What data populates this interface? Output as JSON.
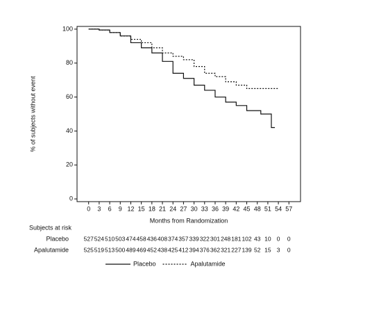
{
  "chart_data": {
    "type": "line",
    "step": true,
    "xlabel": "Months from Randomization",
    "ylabel": "% of subjects without event",
    "xlim": [
      -3.3,
      60.3
    ],
    "ylim": [
      -1.6,
      101.6
    ],
    "xticks": [
      0,
      3,
      6,
      9,
      12,
      15,
      18,
      21,
      24,
      27,
      30,
      33,
      36,
      39,
      42,
      45,
      48,
      51,
      54,
      57
    ],
    "yticks": [
      0,
      20,
      40,
      60,
      80,
      100
    ],
    "series": [
      {
        "name": "Placebo",
        "color": "#111111",
        "dash": "none",
        "x": [
          0,
          3,
          6,
          9,
          12,
          15,
          18,
          21,
          24,
          27,
          30,
          33,
          36,
          39,
          42,
          45,
          48,
          49,
          52,
          52,
          53
        ],
        "values": [
          100,
          99.5,
          98,
          96,
          92,
          89,
          86,
          81,
          74,
          71,
          67,
          64,
          60,
          57,
          55,
          52,
          52,
          50,
          50,
          42,
          42
        ]
      },
      {
        "name": "Apalutamide",
        "color": "#111111",
        "dash": "2,2",
        "x": [
          0,
          3,
          6,
          9,
          12,
          15,
          18,
          21,
          24,
          27,
          30,
          33,
          36,
          39,
          42,
          45,
          48,
          51,
          54
        ],
        "values": [
          100,
          99.5,
          98,
          96,
          94,
          92,
          89,
          86,
          84,
          82,
          78,
          74,
          72,
          69,
          67,
          65,
          65,
          65,
          65
        ]
      }
    ],
    "risk_table": {
      "title": "Subjects at risk",
      "rows": [
        {
          "label": "Placebo",
          "values": [
            527,
            524,
            510,
            503,
            474,
            458,
            436,
            408,
            374,
            357,
            339,
            322,
            301,
            248,
            181,
            102,
            43,
            10,
            0,
            0
          ]
        },
        {
          "label": "Apalutamide",
          "values": [
            525,
            519,
            513,
            500,
            489,
            469,
            452,
            438,
            425,
            412,
            394,
            376,
            362,
            321,
            227,
            139,
            52,
            15,
            3,
            0
          ]
        }
      ]
    }
  }
}
